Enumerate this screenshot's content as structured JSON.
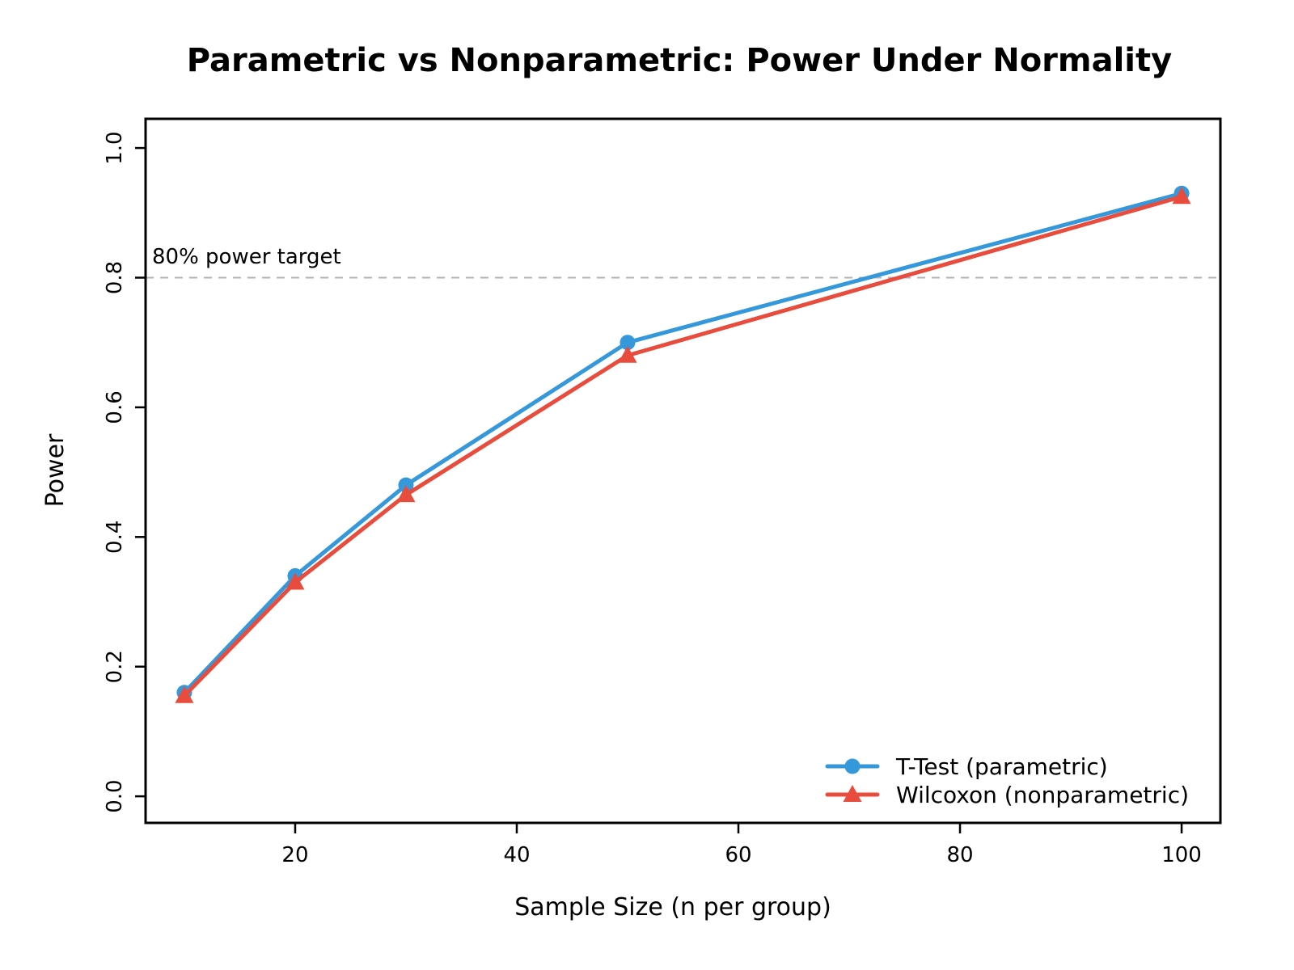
{
  "chart_data": {
    "type": "line",
    "title": "Parametric vs Nonparametric: Power Under Normality",
    "xlabel": "Sample Size (n per group)",
    "ylabel": "Power",
    "x": [
      10,
      20,
      30,
      50,
      100
    ],
    "series": [
      {
        "name": "T-Test (parametric)",
        "marker": "circle",
        "color": "#3498db",
        "values": [
          0.16,
          0.34,
          0.48,
          0.7,
          0.93
        ]
      },
      {
        "name": "Wilcoxon (nonparametric)",
        "marker": "triangle",
        "color": "#e74c3c",
        "values": [
          0.155,
          0.33,
          0.465,
          0.68,
          0.925
        ]
      }
    ],
    "x_ticks": [
      20,
      40,
      60,
      80,
      100
    ],
    "y_ticks": [
      "0.0",
      "0.2",
      "0.4",
      "0.6",
      "0.8",
      "1.0"
    ],
    "xlim": [
      6.5,
      103.5
    ],
    "ylim": [
      -0.041,
      1.045
    ],
    "reference_line": {
      "y": 0.8,
      "label": "80% power target",
      "line_color": "#b3b3b3",
      "label_color": "#8c8c8c",
      "style": "dashed"
    },
    "legend": {
      "position": "lower right"
    },
    "grid": false,
    "axis_color": "#000000",
    "background_color": "#ffffff"
  }
}
